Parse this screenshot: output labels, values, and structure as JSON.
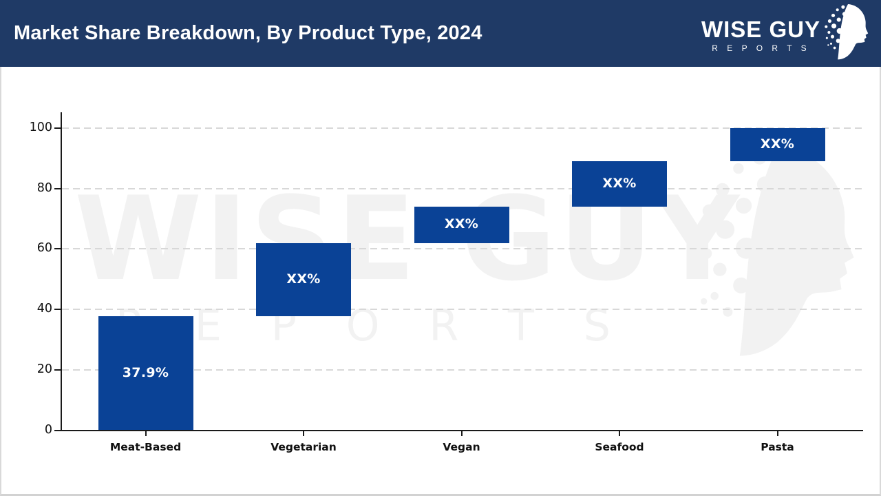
{
  "header": {
    "title": "Market Share Breakdown, By Product Type, 2024"
  },
  "logo": {
    "line1": "WISE GUY",
    "line2": "R E P O R T S"
  },
  "watermark": {
    "line1": "WISE GUY",
    "line2": "R E P O R T S"
  },
  "colors": {
    "header_bg": "#1f3a66",
    "bar": "#0a4296",
    "bar_label_text": "#ffffff",
    "grid": "#d8d8d8",
    "axis": "#1a1a1a",
    "watermark": "#f2f2f2"
  },
  "chart_data": {
    "type": "waterfall-bar",
    "title": "Market Share Breakdown, By Product Type, 2024",
    "categories": [
      "Meat-Based",
      "Vegetarian",
      "Vegan",
      "Seafood",
      "Pasta"
    ],
    "segments": [
      {
        "category": "Meat-Based",
        "start": 0,
        "end": 37.9,
        "label": "37.9%"
      },
      {
        "category": "Vegetarian",
        "start": 37.9,
        "end": 62,
        "label": "XX%"
      },
      {
        "category": "Vegan",
        "start": 62,
        "end": 74,
        "label": "XX%"
      },
      {
        "category": "Seafood",
        "start": 74,
        "end": 89,
        "label": "XX%"
      },
      {
        "category": "Pasta",
        "start": 89,
        "end": 100,
        "label": "XX%"
      }
    ],
    "yticks": [
      0,
      20,
      40,
      60,
      80,
      100
    ],
    "ylim": [
      0,
      105
    ],
    "xlabel": "",
    "ylabel": "",
    "grid": "horizontal-dashed",
    "legend": "none",
    "bar_color": "#0a4296"
  }
}
